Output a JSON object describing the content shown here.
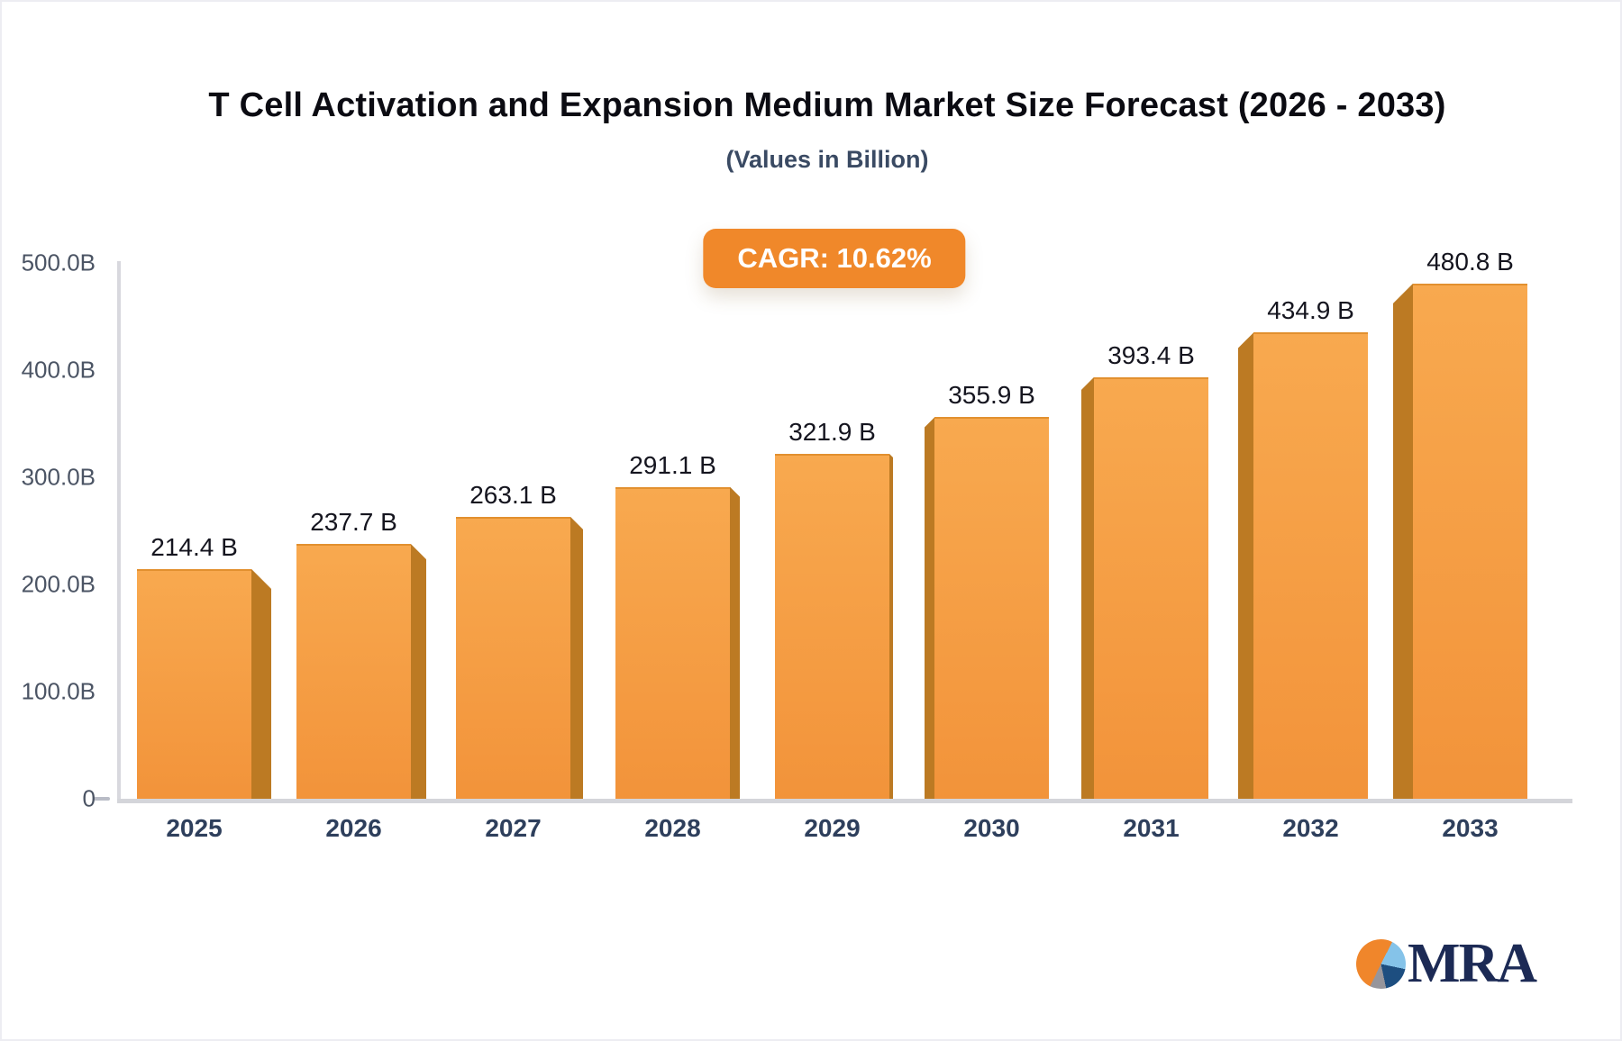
{
  "header": {
    "title": "T Cell Activation and Expansion Medium Market Size Forecast (2026 - 2033)",
    "subtitle": "(Values in Billion)"
  },
  "badge": {
    "label": "CAGR: 10.62%",
    "bg_color": "#f0882a",
    "text_color": "#ffffff"
  },
  "chart_data": {
    "type": "bar",
    "title": "T Cell Activation and Expansion Medium Market Size Forecast (2026 - 2033)",
    "subtitle": "(Values in Billion)",
    "cagr": "10.62%",
    "categories": [
      "2025",
      "2026",
      "2027",
      "2028",
      "2029",
      "2030",
      "2031",
      "2032",
      "2033"
    ],
    "values": [
      214.4,
      237.7,
      263.1,
      291.1,
      321.9,
      355.9,
      393.4,
      434.9,
      480.8
    ],
    "value_labels": [
      "214.4 B",
      "237.7 B",
      "263.1 B",
      "291.1 B",
      "321.9 B",
      "355.9 B",
      "393.4 B",
      "434.9 B",
      "480.8 B"
    ],
    "unit": "Billion",
    "xlabel": "",
    "ylabel": "",
    "ylim": [
      0,
      500
    ],
    "grid": false,
    "legend_position": "none",
    "y_ticks": [
      {
        "value": 500,
        "label": "500.0B"
      },
      {
        "value": 400,
        "label": "400.0B"
      },
      {
        "value": 300,
        "label": "300.0B"
      },
      {
        "value": 200,
        "label": "200.0B"
      },
      {
        "value": 100,
        "label": "100.0B"
      },
      {
        "value": 0,
        "label": "0"
      }
    ],
    "colors": {
      "bar_face_top": "#f8a94f",
      "bar_face_bottom": "#f2933a",
      "bar_side": "#bc7a23",
      "bar_top_edge": "#e2902f",
      "axis_line": "#d8d8de",
      "y_tick_text": "#4b5464",
      "x_tick_text": "#2e3f5c",
      "value_text": "#15151f"
    }
  },
  "logo": {
    "text": "MRA",
    "text_color": "#1c2a55",
    "pie_colors": {
      "orange": "#f0862b",
      "light_blue": "#85c3e9",
      "navy": "#1d4e80",
      "gray": "#96959b"
    }
  }
}
